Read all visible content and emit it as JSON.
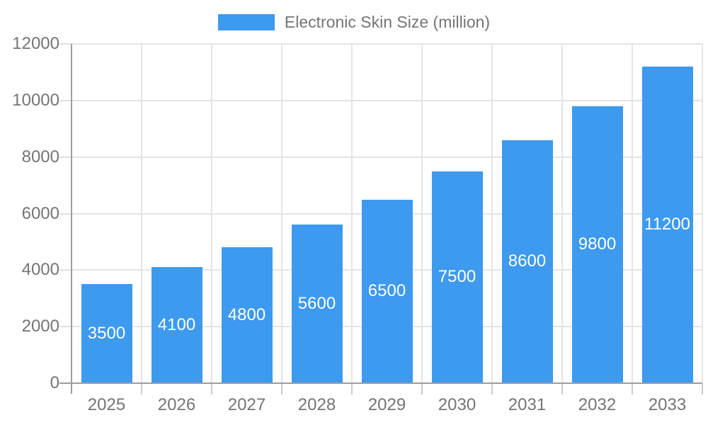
{
  "chart_data": {
    "type": "bar",
    "title": "",
    "legend": "Electronic Skin Size (million)",
    "legend_position": "top",
    "categories": [
      "2025",
      "2026",
      "2027",
      "2028",
      "2029",
      "2030",
      "2031",
      "2032",
      "2033"
    ],
    "values": [
      3500,
      4100,
      4800,
      5600,
      6500,
      7500,
      8600,
      9800,
      11200
    ],
    "bar_value_labels": [
      "3500",
      "4100",
      "4800",
      "5600",
      "6500",
      "7500",
      "8600",
      "9800",
      "11200"
    ],
    "xlabel": "",
    "ylabel": "",
    "ylim": [
      0,
      12000
    ],
    "ytick_step": 2000,
    "yticks": [
      "0",
      "2000",
      "4000",
      "6000",
      "8000",
      "10000",
      "12000"
    ],
    "grid": true,
    "colors": {
      "bar": "#3D9AEE",
      "bar_label_text": "#FFFFFF",
      "axis_text": "#757575",
      "legend_text": "#757575",
      "gridline": "#E4E4E4",
      "axis_line": "#9E9E9E",
      "x_tick": "#CCCCCC",
      "y_tick": "#E0E0E0",
      "background": "#FFFFFF"
    }
  }
}
